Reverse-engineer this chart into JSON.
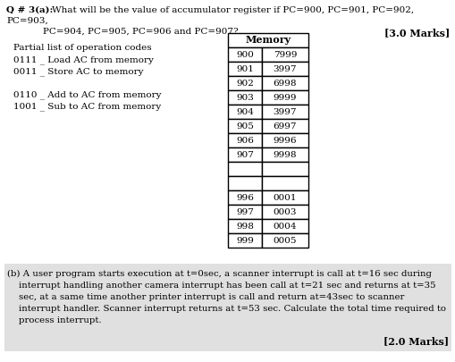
{
  "bg_color": "#ffffff",
  "text_color": "#000000",
  "highlight_color": "#cccccc",
  "font_size": 7.5,
  "memory_header": "Memory",
  "memory_rows_top": [
    [
      "900",
      "7999"
    ],
    [
      "901",
      "3997"
    ],
    [
      "902",
      "6998"
    ],
    [
      "903",
      "9999"
    ],
    [
      "904",
      "3997"
    ],
    [
      "905",
      "6997"
    ],
    [
      "906",
      "9996"
    ],
    [
      "907",
      "9998"
    ]
  ],
  "memory_rows_bottom": [
    [
      "996",
      "0001"
    ],
    [
      "997",
      "0003"
    ],
    [
      "998",
      "0004"
    ],
    [
      "999",
      "0005"
    ]
  ],
  "part_b_lines": [
    "(b) A user program starts execution at t=0sec, a scanner interrupt is call at t=16 sec during",
    "    interrupt handling another camera interrupt has been call at t=21 sec and returns at t=35",
    "    sec, at a same time another printer interrupt is call and return at=43sec to scanner",
    "    interrupt handler. Scanner interrupt returns at t=53 sec. Calculate the total time required to",
    "    process interrupt."
  ],
  "part_b_marks": "[2.0 Marks]",
  "op_codes_title": "Partial list of operation codes",
  "op_codes": [
    "0111 _ Load AC from memory",
    "0011 _ Store AC to memory",
    "",
    "0110 _ Add to AC from memory",
    "1001 _ Sub to AC from memory"
  ]
}
